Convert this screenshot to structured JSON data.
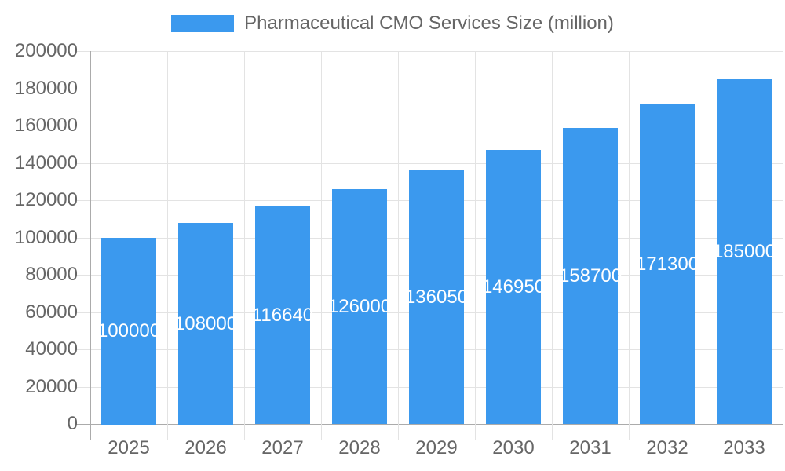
{
  "legend": {
    "position": "top",
    "label": "Pharmaceutical CMO Services Size (million)"
  },
  "chart_data": {
    "type": "bar",
    "title": "Pharmaceutical CMO Services Size (million)",
    "xlabel": "",
    "ylabel": "",
    "categories": [
      "2025",
      "2026",
      "2027",
      "2028",
      "2029",
      "2030",
      "2031",
      "2032",
      "2033"
    ],
    "values": [
      100000,
      108000,
      116640,
      126000,
      136050,
      146950,
      158700,
      171300,
      185000
    ],
    "bar_labels": [
      "100000",
      "108000",
      "116640",
      "126000",
      "136050",
      "146950",
      "158700",
      "171300",
      "185000"
    ],
    "ylim": [
      0,
      200000
    ],
    "ytick_step": 20000,
    "ytick_labels": [
      "0",
      "20000",
      "40000",
      "60000",
      "80000",
      "100000",
      "120000",
      "140000",
      "160000",
      "180000",
      "200000"
    ],
    "grid": true,
    "legend_position": "top",
    "colors": {
      "bar": "#3B99EE",
      "bar_label_text": "#FFFFFF",
      "tick_text": "#666666",
      "grid_line": "#E3E3E3",
      "axis_line": "#ABABAB",
      "background": "#FFFFFF"
    }
  }
}
